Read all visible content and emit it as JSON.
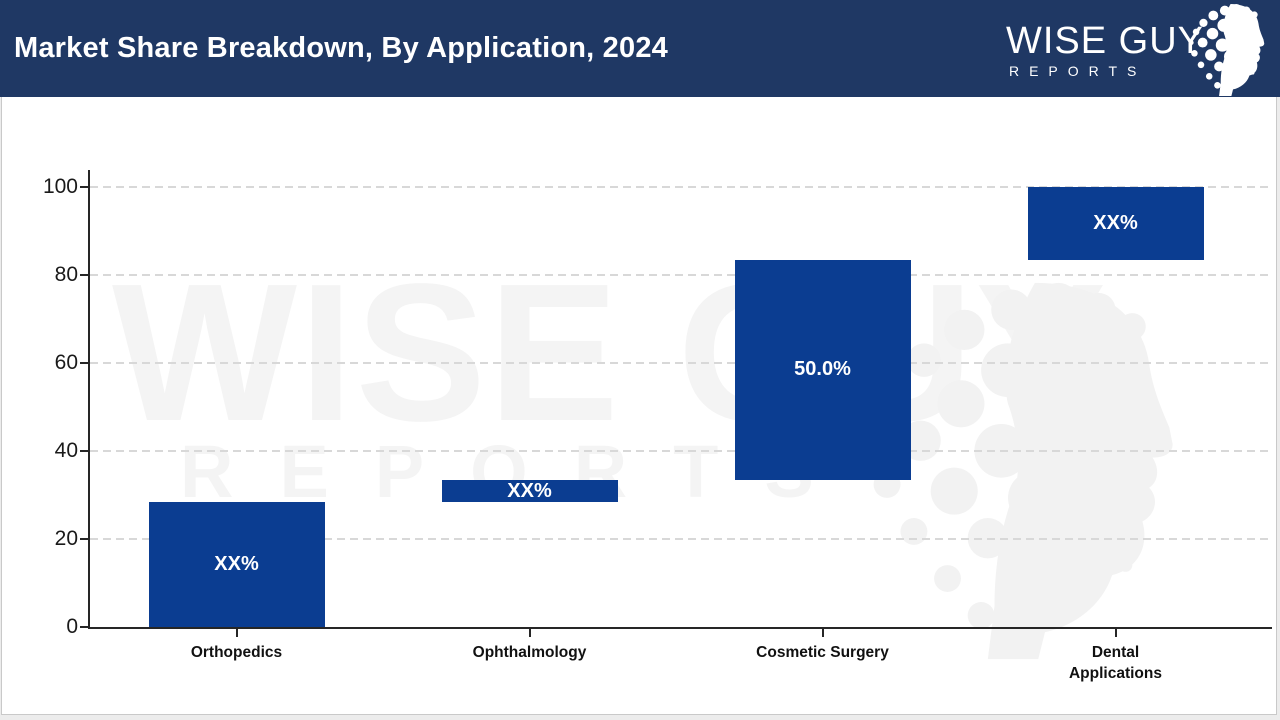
{
  "header": {
    "title": "Market Share Breakdown, By Application, 2024",
    "logo": {
      "line1": "WISE GUY",
      "line2": "REPORTS"
    }
  },
  "watermark": {
    "line1": "WISE GUY",
    "line2": "REPORTS"
  },
  "colors": {
    "header_bg": "#1f3864",
    "bar": "#0b3d91",
    "gridline": "#d8d8d8",
    "axis": "#262626",
    "watermark": "#f3f3f3",
    "card_bg": "#ffffff"
  },
  "chart_data": {
    "type": "bar",
    "subtype": "waterfall",
    "title": "Market Share Breakdown, By Application, 2024",
    "categories": [
      "Orthopedics",
      "Ophthalmology",
      "Cosmetic Surgery",
      "Dental Applications"
    ],
    "segments": [
      {
        "category": "Orthopedics",
        "start": 0,
        "end": 28.3,
        "label": "XX%"
      },
      {
        "category": "Ophthalmology",
        "start": 28.3,
        "end": 33.5,
        "label": "XX%"
      },
      {
        "category": "Cosmetic Surgery",
        "start": 33.5,
        "end": 83.5,
        "label": "50.0%"
      },
      {
        "category": "Dental Applications",
        "start": 83.5,
        "end": 100,
        "label": "XX%"
      }
    ],
    "ylim": [
      0,
      100
    ],
    "yticks": [
      0,
      20,
      40,
      60,
      80,
      100
    ],
    "xlabel": "",
    "ylabel": "",
    "grid": "horizontal-dashed",
    "legend": "none"
  }
}
